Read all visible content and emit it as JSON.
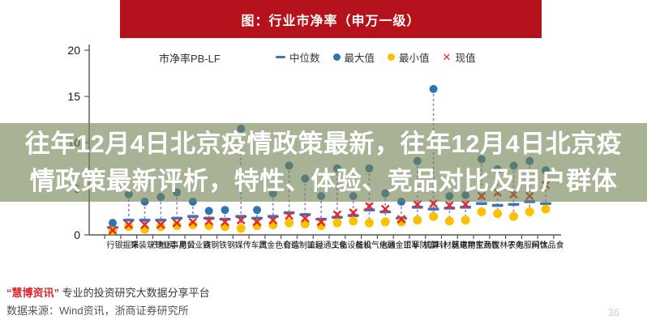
{
  "banner": {
    "title": "图：行业市净率（申万一级）",
    "bg_color": "#b5121b"
  },
  "overlay": {
    "line1": "往年12月4日北京疫情政策最新，往年12月4日北京疫",
    "line2": "情政策最新评析，特性、体验、竞品对比及用户群体",
    "bg_color": "rgba(115,131,82,0.62)"
  },
  "footer": {
    "brand": "“慧博资讯”",
    "slogan": " 专业的投资研究大数据分享平台",
    "source_line": "数据来源：Wind资讯，浙商证券研究所",
    "page_number": "36"
  },
  "chart_data": {
    "type": "scatter",
    "title": "市净率PB-LF",
    "legend_position": "top",
    "grid": false,
    "ylim": [
      0,
      20
    ],
    "yticks": [
      0,
      5,
      10,
      15,
      20
    ],
    "connector_color": "#9b7fc4",
    "categories": [
      "银行",
      "采掘",
      "建筑装饰",
      "房地产",
      "公用事业",
      "商业贸易",
      "钢铁",
      "钢铁",
      "传媒",
      "汽车",
      "有色金属",
      "综合",
      "轻工制造",
      "交通运输",
      "化工",
      "机械设备",
      "电气设备",
      "通信",
      "非银金融",
      "国防军工",
      "计算机",
      "建筑材料",
      "家用电器",
      "医药生物",
      "农林牧渔",
      "电子",
      "休闲服务",
      "食品饮料"
    ],
    "series": [
      {
        "name": "中位数",
        "marker": "dash",
        "color": "#3f74b8",
        "values": [
          0.8,
          1.6,
          1.6,
          1.6,
          1.8,
          2.0,
          1.8,
          1.7,
          2.0,
          1.8,
          2.0,
          2.4,
          2.2,
          1.7,
          1.9,
          2.1,
          2.7,
          2.5,
          1.8,
          3.0,
          2.8,
          2.9,
          3.0,
          3.4,
          3.2,
          3.3,
          3.6,
          3.4
        ]
      },
      {
        "name": "最大值",
        "marker": "dot",
        "color": "#2e74b5",
        "values": [
          1.3,
          4.4,
          3.6,
          4.1,
          4.6,
          3.6,
          2.6,
          2.7,
          11.5,
          2.7,
          4.5,
          7.5,
          6.1,
          4.2,
          7.2,
          4.2,
          7.2,
          4.5,
          3.6,
          8.0,
          15.8,
          4.2,
          4.3,
          8.2,
          7.1,
          7.5,
          8.0,
          7.0
        ]
      },
      {
        "name": "最小值",
        "marker": "dot",
        "color": "#ffc000",
        "values": [
          0.5,
          0.9,
          0.6,
          0.9,
          1.0,
          1.1,
          1.0,
          0.9,
          0.7,
          1.0,
          1.1,
          1.3,
          1.2,
          1.0,
          1.3,
          1.5,
          1.3,
          1.4,
          1.4,
          1.6,
          2.0,
          1.5,
          1.6,
          2.5,
          2.3,
          2.0,
          2.5,
          2.8
        ]
      },
      {
        "name": "现值",
        "marker": "x",
        "color": "#e8262c",
        "values": [
          0.5,
          1.1,
          1.1,
          1.1,
          1.3,
          1.4,
          1.5,
          1.4,
          1.6,
          1.4,
          1.6,
          2.1,
          1.8,
          1.4,
          2.2,
          2.4,
          3.1,
          2.8,
          1.7,
          3.3,
          3.4,
          3.2,
          3.3,
          4.2,
          4.6,
          4.4,
          4.2,
          5.4
        ]
      }
    ]
  }
}
